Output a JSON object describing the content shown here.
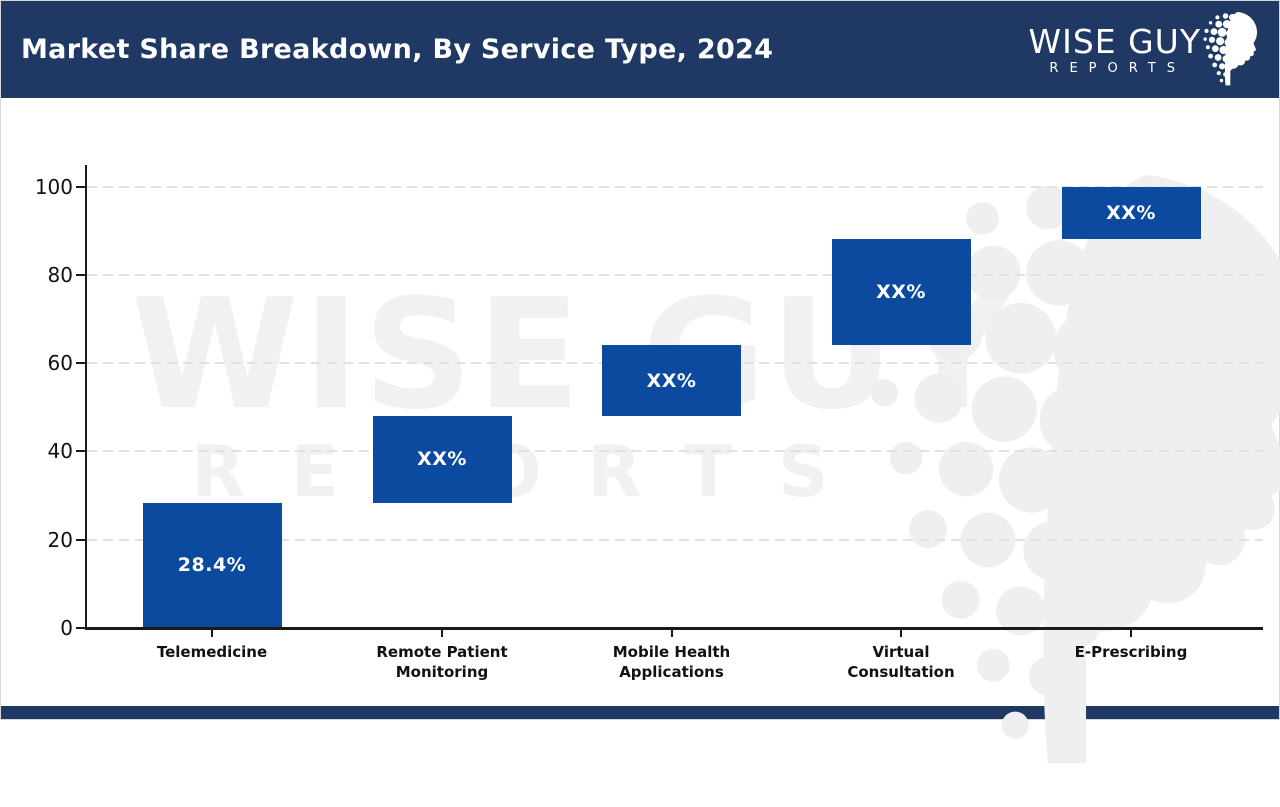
{
  "header": {
    "title": "Market Share Breakdown, By Service Type, 2024",
    "logo": {
      "primary": "WISE GUY",
      "secondary": "REPORTS"
    }
  },
  "watermark": {
    "primary": "WISE GUY",
    "secondary": "REPORTS"
  },
  "colors": {
    "header_bg": "#1f3864",
    "footer_bg": "#1f3864",
    "bar": "#0b4a9f",
    "bar_label": "#ffffff",
    "axis": "#1a1a1a",
    "grid": "#e2e2e2",
    "watermark": "#f1f1f3",
    "title_text": "#ffffff"
  },
  "chart_data": {
    "type": "bar",
    "variant": "waterfall",
    "title": "Market Share Breakdown, By Service Type, 2024",
    "unit": "%",
    "categories": [
      [
        "Telemedicine"
      ],
      [
        "Remote Patient",
        "Monitoring"
      ],
      [
        "Mobile Health",
        "Applications"
      ],
      [
        "Virtual",
        "Consultation"
      ],
      [
        "E-Prescribing"
      ]
    ],
    "series": [
      {
        "name": "Market Share",
        "segments": [
          {
            "category": "Telemedicine",
            "start": 0,
            "end": 28.4,
            "label": "28.4%"
          },
          {
            "category": "Remote Patient Monitoring",
            "start": 28.4,
            "end": 48,
            "label": "XX%"
          },
          {
            "category": "Mobile Health Applications",
            "start": 48,
            "end": 64,
            "label": "XX%"
          },
          {
            "category": "Virtual Consultation",
            "start": 64,
            "end": 88,
            "label": "XX%"
          },
          {
            "category": "E-Prescribing",
            "start": 88,
            "end": 100,
            "label": "XX%"
          }
        ]
      }
    ],
    "yticks": [
      0,
      20,
      40,
      60,
      80,
      100
    ],
    "ylim": [
      0,
      105
    ],
    "grid": "horizontal-dashed",
    "legend": "none"
  }
}
